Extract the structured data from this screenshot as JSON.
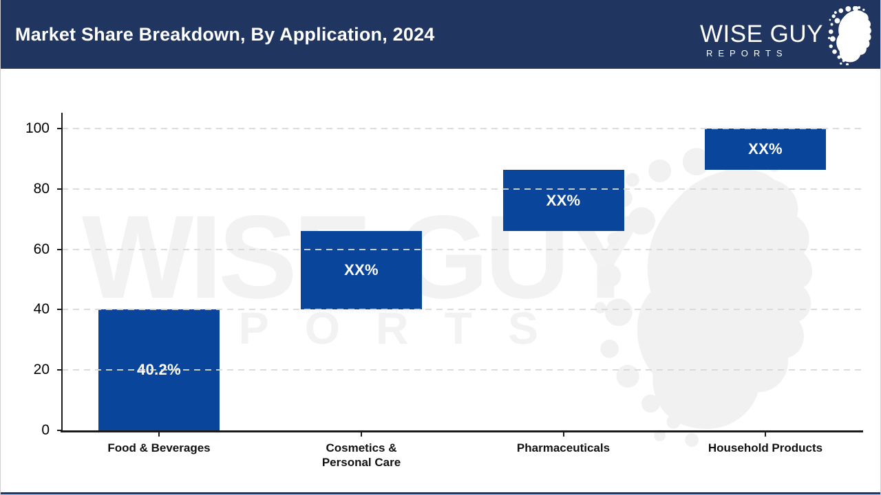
{
  "header": {
    "title": "Market Share Breakdown, By Application, 2024",
    "logo": {
      "primary": "WISE GUY",
      "secondary": "REPORTS"
    }
  },
  "watermark": {
    "primary": "WISE GUY",
    "secondary": "REPORTS"
  },
  "colors": {
    "header_bg": "#20355f",
    "bar": "#0a459c",
    "axis": "#1a1a1a",
    "grid": "#d9d9d9",
    "watermark": "#f2f2f2",
    "bar_label": "#ffffff",
    "title_text": "#ffffff"
  },
  "chart_data": {
    "type": "bar",
    "subtype": "floating_segment_waterfall",
    "title": "Market Share Breakdown, By Application, 2024",
    "xlabel": "",
    "ylabel": "",
    "ylim": [
      0,
      105
    ],
    "yticks": [
      0,
      20,
      40,
      60,
      80,
      100
    ],
    "grid": "horizontal dashed",
    "legend": "none",
    "categories": [
      "Food & Beverages",
      "Cosmetics & Personal Care",
      "Pharmaceuticals",
      "Household Products"
    ],
    "points": [
      {
        "category": "Food & Beverages",
        "category_lines": [
          "Food & Beverages"
        ],
        "start": 0,
        "end": 40.2,
        "value": 40.2,
        "value_label": "40.2%"
      },
      {
        "category": "Cosmetics & Personal Care",
        "category_lines": [
          "Cosmetics &",
          "Personal Care"
        ],
        "start": 40.2,
        "end": 66,
        "value": 25.8,
        "value_label": "XX%"
      },
      {
        "category": "Pharmaceuticals",
        "category_lines": [
          "Pharmaceuticals"
        ],
        "start": 66,
        "end": 86.3,
        "value": 20.3,
        "value_label": "XX%"
      },
      {
        "category": "Household Products",
        "category_lines": [
          "Household Products"
        ],
        "start": 86.3,
        "end": 100,
        "value": 13.7,
        "value_label": "XX%"
      }
    ]
  }
}
